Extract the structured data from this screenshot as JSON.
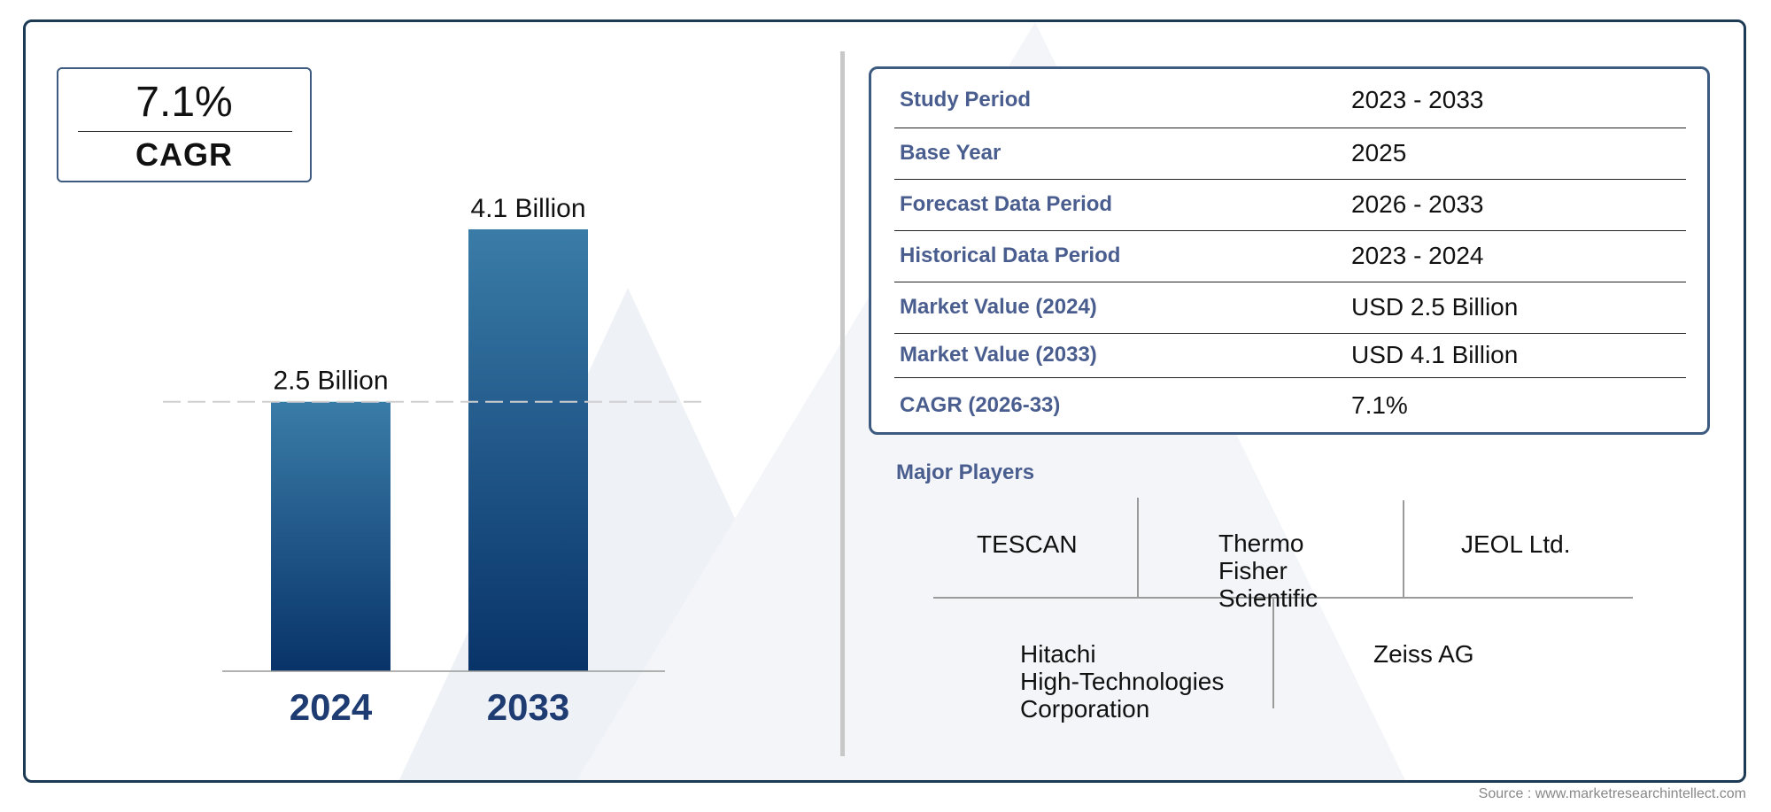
{
  "cagr_box": {
    "value": "7.1%",
    "label": "CAGR"
  },
  "chart_data": {
    "type": "bar",
    "categories": [
      "2024",
      "2033"
    ],
    "values": [
      2.5,
      4.1
    ],
    "value_labels": [
      "2.5 Billion",
      "4.1 Billion"
    ],
    "ylim": [
      0,
      4.1
    ],
    "title": "",
    "xlabel": "",
    "ylabel": "",
    "grid": false,
    "reference_line_value": 2.5,
    "colors": {
      "bar_top": "#3a7ca8",
      "bar_bottom": "#083369",
      "category_label": "#1e3c72"
    }
  },
  "info_table": [
    {
      "key": "Study Period",
      "value": "2023 - 2033"
    },
    {
      "key": "Base Year",
      "value": "2025"
    },
    {
      "key": "Forecast Data Period",
      "value": "2026 - 2033"
    },
    {
      "key": "Historical Data Period",
      "value": "2023 - 2024"
    },
    {
      "key": "Market Value (2024)",
      "value": "USD 2.5 Billion"
    },
    {
      "key": "Market Value (2033)",
      "value": "USD 4.1 Billion"
    },
    {
      "key": "CAGR (2026-33)",
      "value": "7.1%"
    }
  ],
  "major_players": {
    "title": "Major Players",
    "players": [
      "TESCAN",
      "Thermo\nFisher\nScientific",
      "JEOL Ltd.",
      "Hitachi\nHigh-Technologies\nCorporation",
      "Zeiss AG"
    ]
  },
  "source": "Source : www.marketresearchintellect.com",
  "colors": {
    "frame": "#1d3a55",
    "accent_text": "#4a5d8f",
    "watermark": "#eef1f6"
  }
}
